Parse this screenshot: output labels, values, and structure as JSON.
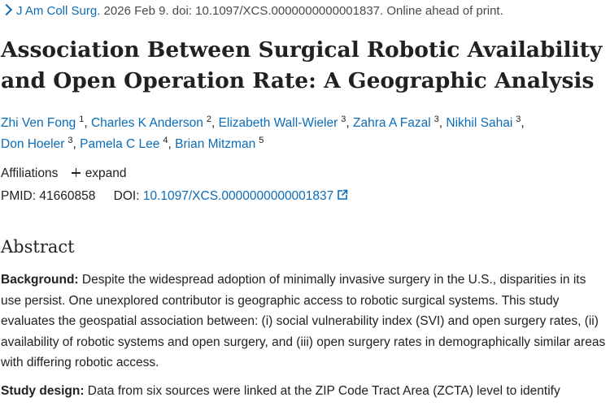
{
  "citation": {
    "journal": "J Am Coll Surg.",
    "details": "2026 Feb 9. doi: 10.1097/XCS.0000000000001837. Online ahead of print."
  },
  "article": {
    "title": "Association Between Surgical Robotic Availability and Open Operation Rate: A Geographic Analysis"
  },
  "authors": [
    {
      "name": "Zhi Ven Fong",
      "sup": "1"
    },
    {
      "name": "Charles K Anderson",
      "sup": "2"
    },
    {
      "name": "Elizabeth Wall-Wieler",
      "sup": "3"
    },
    {
      "name": "Zahra A Fazal",
      "sup": "3"
    },
    {
      "name": "Nikhil Sahai",
      "sup": "3"
    },
    {
      "name": "Don Hoeler",
      "sup": "3"
    },
    {
      "name": "Pamela C Lee",
      "sup": "4"
    },
    {
      "name": "Brian Mitzman",
      "sup": "5"
    }
  ],
  "affiliations": {
    "label": "Affiliations",
    "expand_label": "expand"
  },
  "ids": {
    "pmid_label": "PMID:",
    "pmid": "41660858",
    "doi_label": "DOI:",
    "doi": "10.1097/XCS.0000000000001837"
  },
  "abstract": {
    "heading": "Abstract",
    "sections": [
      {
        "label": "Background:",
        "text": "Despite the widespread adoption of minimally invasive surgery in the U.S., disparities in its use persist. One unexplored contributor is geographic access to robotic surgical systems. This study evaluates the geospatial association between: (i) social vulnerability index (SVI) and open surgery rates, (ii) availability of robotic systems and open surgery, and (iii) open surgery rates in demographically similar areas with differing robotic access."
      },
      {
        "label": "Study design:",
        "text": "Data from six sources were linked at the ZIP Code Tract Area (ZCTA) level to identify"
      }
    ]
  },
  "colors": {
    "link": "#0b6cb8",
    "text": "#212121"
  },
  "icons": {
    "journal_chevron": "chevron-right-icon",
    "expand": "plus-icon",
    "doi_external": "external-link-icon"
  }
}
